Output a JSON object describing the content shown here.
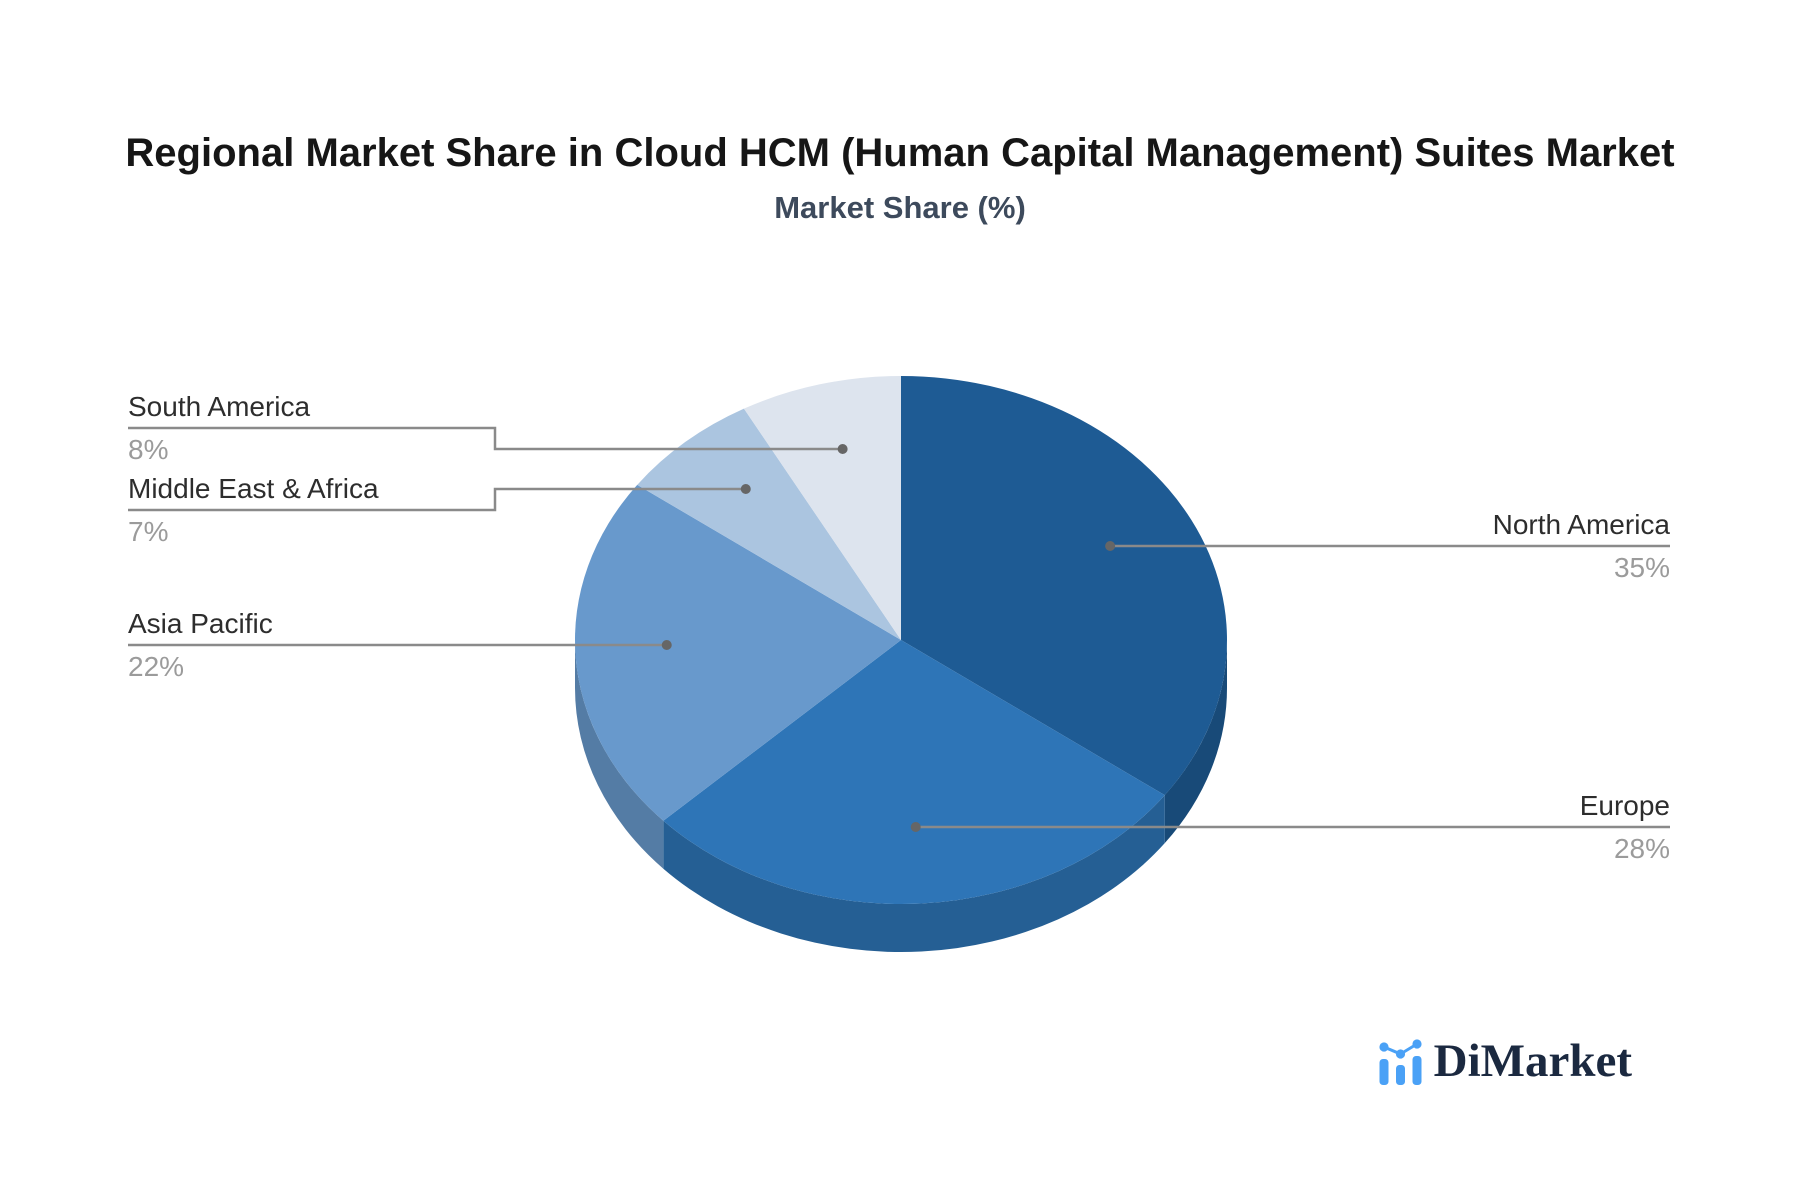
{
  "header": {
    "title": "Regional Market Share in Cloud HCM (Human Capital Management) Suites Market",
    "subtitle": "Market Share (%)"
  },
  "chart_data": {
    "type": "pie",
    "style": "3d",
    "title": "Regional Market Share in Cloud HCM (Human Capital Management) Suites Market",
    "subtitle": "Market Share (%)",
    "unit": "%",
    "start_angle_deg": 0,
    "direction": "clockwise",
    "legend": "none",
    "labels_position": "callout",
    "slices": [
      {
        "label": "North America",
        "value": 35,
        "value_text": "35%",
        "color": "#1e5b94"
      },
      {
        "label": "Europe",
        "value": 28,
        "value_text": "28%",
        "color": "#2e75b7"
      },
      {
        "label": "Asia Pacific",
        "value": 22,
        "value_text": "22%",
        "color": "#6899cc"
      },
      {
        "label": "Middle East & Africa",
        "value": 7,
        "value_text": "7%",
        "color": "#abc5e0"
      },
      {
        "label": "South America",
        "value": 8,
        "value_text": "8%",
        "color": "#dde4ee"
      }
    ],
    "callout_line_color": "#8a8a8a",
    "callout_dot_color": "#666666",
    "label_text_color": "#2d2d2d",
    "value_text_color": "#9b9b9b"
  },
  "branding": {
    "logo_text": "DiMarket",
    "logo_icon": "bar-line-chart-icon",
    "icon_color": "#4aa1f6",
    "text_color": "#1b2940"
  }
}
